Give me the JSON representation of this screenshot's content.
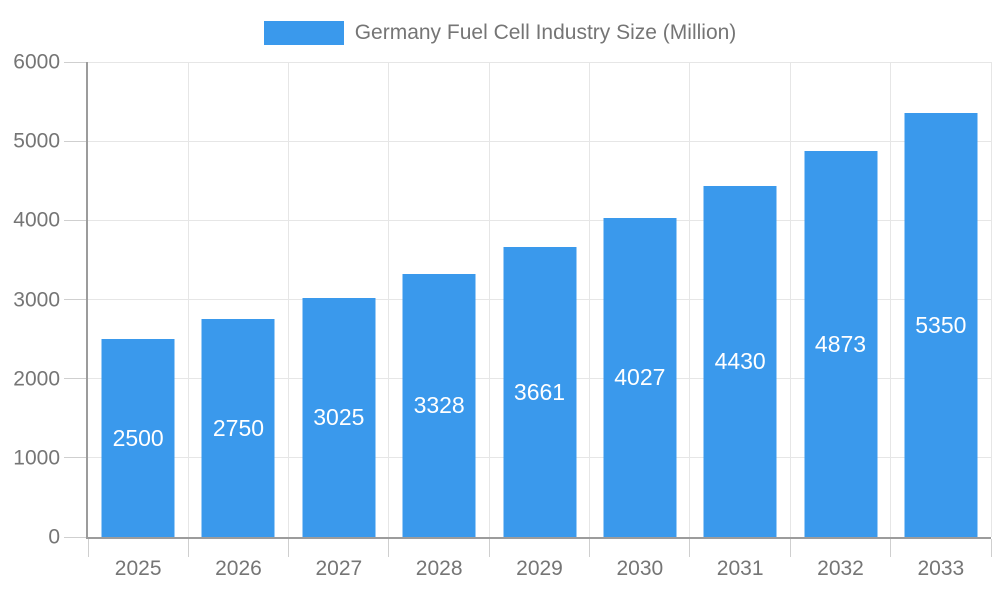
{
  "colors": {
    "bar": "#3A99EC",
    "grid_line": "#E6E6E6",
    "axis_line": "#9C9C9C",
    "tick_mark": "#CFCFCF",
    "axis_text": "#757575",
    "value_text": "#FFFFFF",
    "background": "#FFFFFF"
  },
  "legend": {
    "label": "Germany Fuel Cell Industry Size (Million)"
  },
  "chart_data": {
    "type": "bar",
    "title": "",
    "series_name": "Germany Fuel Cell Industry Size (Million)",
    "legend_position": "top",
    "categories": [
      "2025",
      "2026",
      "2027",
      "2028",
      "2029",
      "2030",
      "2031",
      "2032",
      "2033"
    ],
    "values": [
      2500,
      2750,
      3025,
      3328,
      3661,
      4027,
      4430,
      4873,
      5350
    ],
    "xlabel": "",
    "ylabel": "",
    "ylim": [
      0,
      6000
    ],
    "ytick_step": 1000,
    "ytick_labels": [
      "0",
      "1000",
      "2000",
      "3000",
      "4000",
      "5000",
      "6000"
    ],
    "grid": true,
    "bar_value_labels_visible": true
  }
}
